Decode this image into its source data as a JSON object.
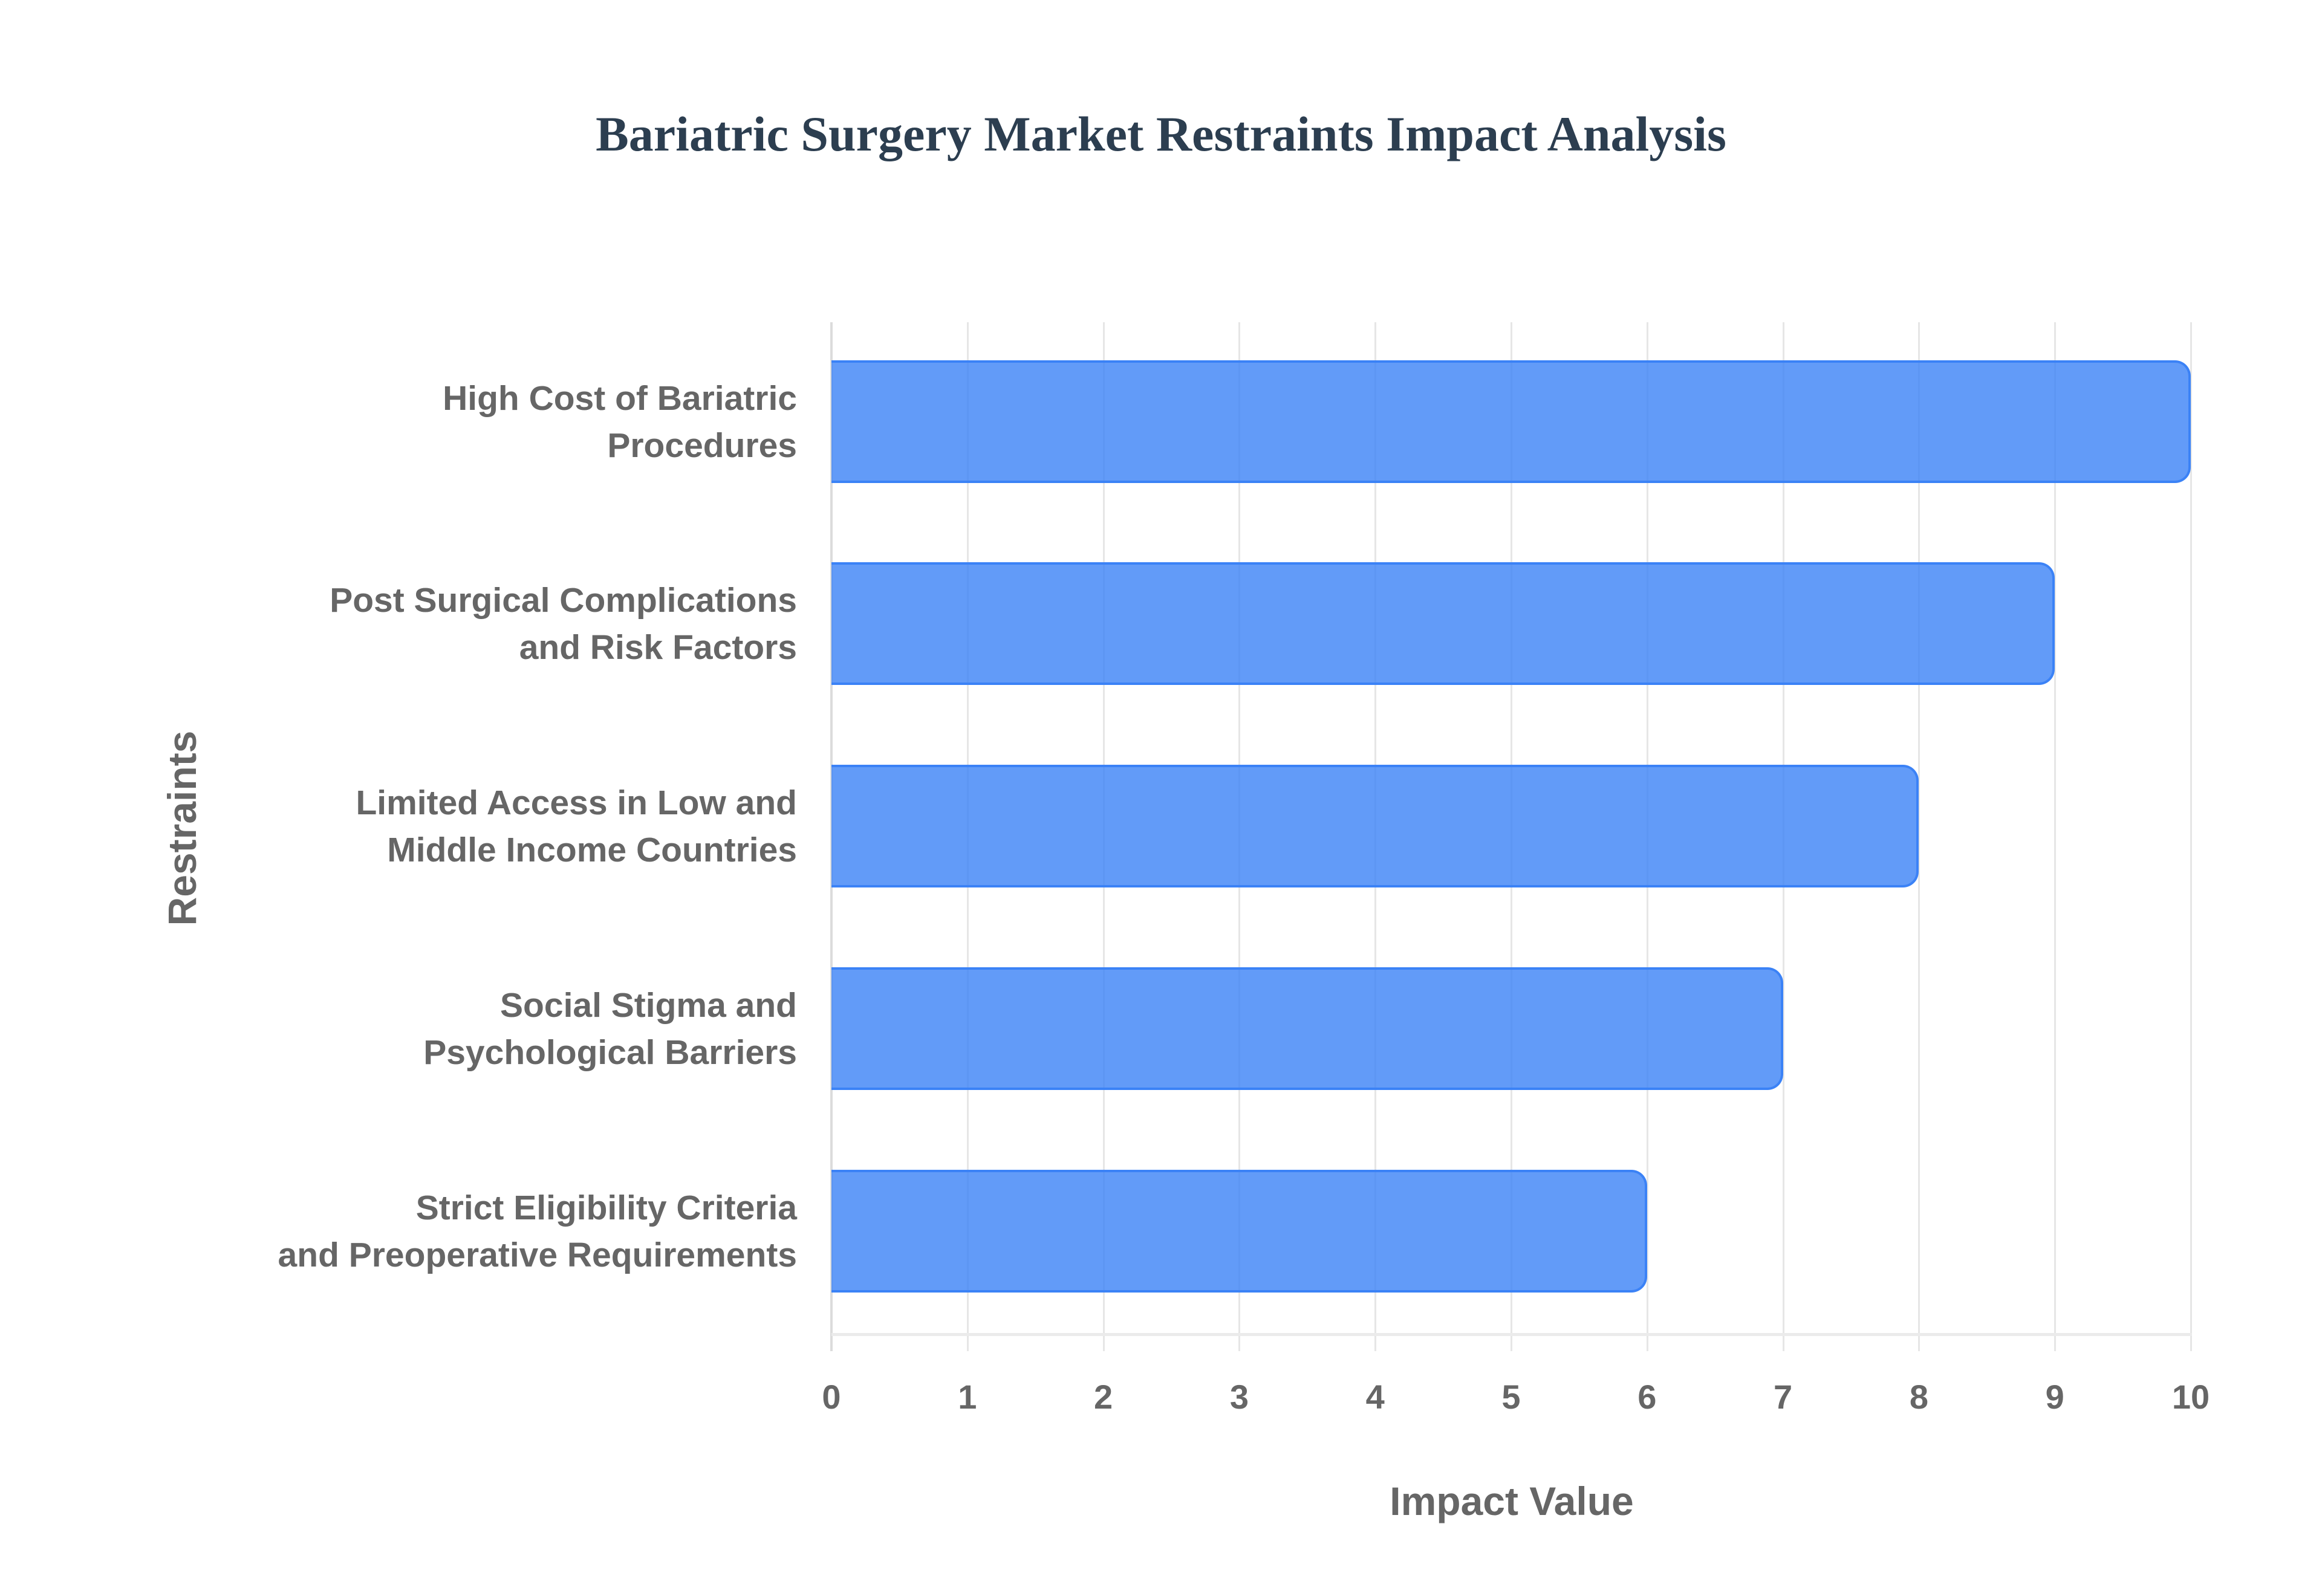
{
  "chart_data": {
    "type": "bar",
    "orientation": "horizontal",
    "title": "Bariatric Surgery Market Restraints Impact Analysis",
    "xlabel": "Impact Value",
    "ylabel": "Restraints",
    "xlim": [
      0,
      10
    ],
    "x_ticks": [
      "0",
      "1",
      "2",
      "3",
      "4",
      "5",
      "6",
      "7",
      "8",
      "9",
      "10"
    ],
    "grid": true,
    "legend": null,
    "categories": [
      [
        "High Cost of Bariatric",
        "Procedures"
      ],
      [
        "Post Surgical Complications",
        "and Risk Factors"
      ],
      [
        "Limited Access in Low and",
        "Middle Income Countries"
      ],
      [
        "Social Stigma and",
        "Psychological Barriers"
      ],
      [
        "Strict Eligibility Criteria",
        "and Preoperative Requirements"
      ]
    ],
    "category_names": [
      "High Cost of Bariatric Procedures",
      "Post Surgical Complications and Risk Factors",
      "Limited Access in Low and Middle Income Countries",
      "Social Stigma and Psychological Barriers",
      "Strict Eligibility Criteria and Preoperative Requirements"
    ],
    "values": [
      10,
      9,
      8,
      7,
      6
    ],
    "colors": {
      "bar_fill": "#6399f5",
      "bar_border": "#3b82f6",
      "title": "#2c3e50",
      "text": "#666666",
      "grid": "#e6e6e6"
    }
  }
}
